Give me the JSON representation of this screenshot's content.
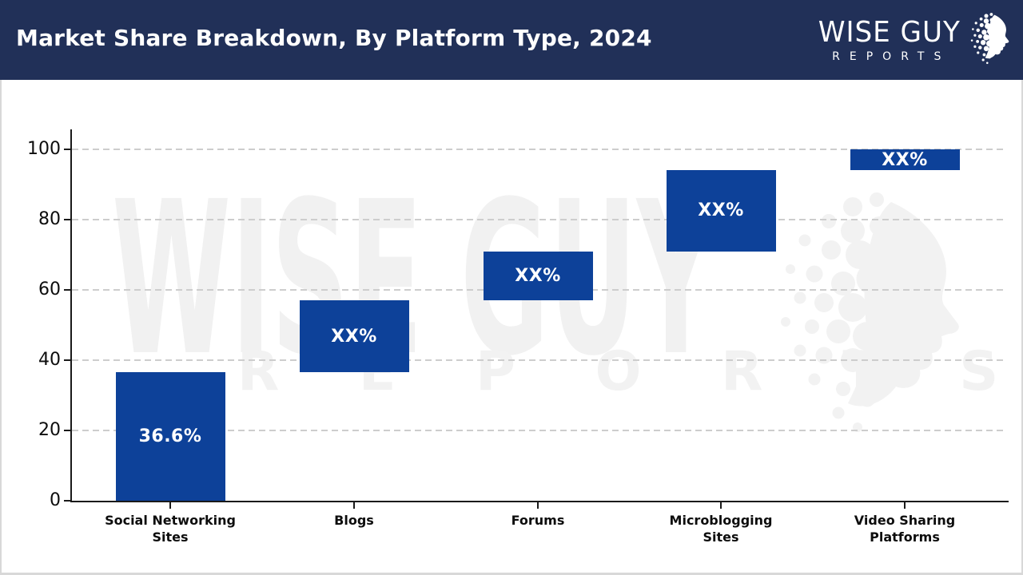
{
  "header": {
    "title": "Market Share Breakdown, By Platform Type, 2024",
    "logo": {
      "line1": "WISE GUY",
      "line2": "REPORTS"
    }
  },
  "watermark": {
    "line1": "WISE GUY",
    "line2": "R E P O R T S"
  },
  "colors": {
    "header_bg": "#213058",
    "bar": "#0d4199",
    "axis": "#1a1a1a",
    "grid": "#cdcdcd",
    "card_border": "#d8d8d8",
    "bar_label_text": "#ffffff"
  },
  "chart_data": {
    "type": "bar",
    "variant": "floating-waterfall",
    "title": "Market Share Breakdown, By Platform Type, 2024",
    "categories": [
      "Social Networking Sites",
      "Blogs",
      "Forums",
      "Microblogging Sites",
      "Video Sharing Platforms"
    ],
    "category_display": [
      "Social Networking\nSites",
      "Blogs",
      "Forums",
      "Microblogging\nSites",
      "Video Sharing\nPlatforms"
    ],
    "series": [
      {
        "name": "Market share (%)",
        "segments": [
          {
            "category": "Social Networking Sites",
            "start": 0,
            "end": 36.6,
            "label": "36.6%"
          },
          {
            "category": "Blogs",
            "start": 36.6,
            "end": 57,
            "label": "XX%"
          },
          {
            "category": "Forums",
            "start": 57,
            "end": 71,
            "label": "XX%"
          },
          {
            "category": "Microblogging Sites",
            "start": 71,
            "end": 94,
            "label": "XX%"
          },
          {
            "category": "Video Sharing Platforms",
            "start": 94,
            "end": 100,
            "label": "XX%"
          }
        ]
      }
    ],
    "ylim": [
      0,
      100
    ],
    "yticks": [
      0,
      20,
      40,
      60,
      80,
      100
    ],
    "grid": {
      "horizontal": true,
      "style": "dashed"
    },
    "legend": "none",
    "bar_color": "#0d4199"
  }
}
